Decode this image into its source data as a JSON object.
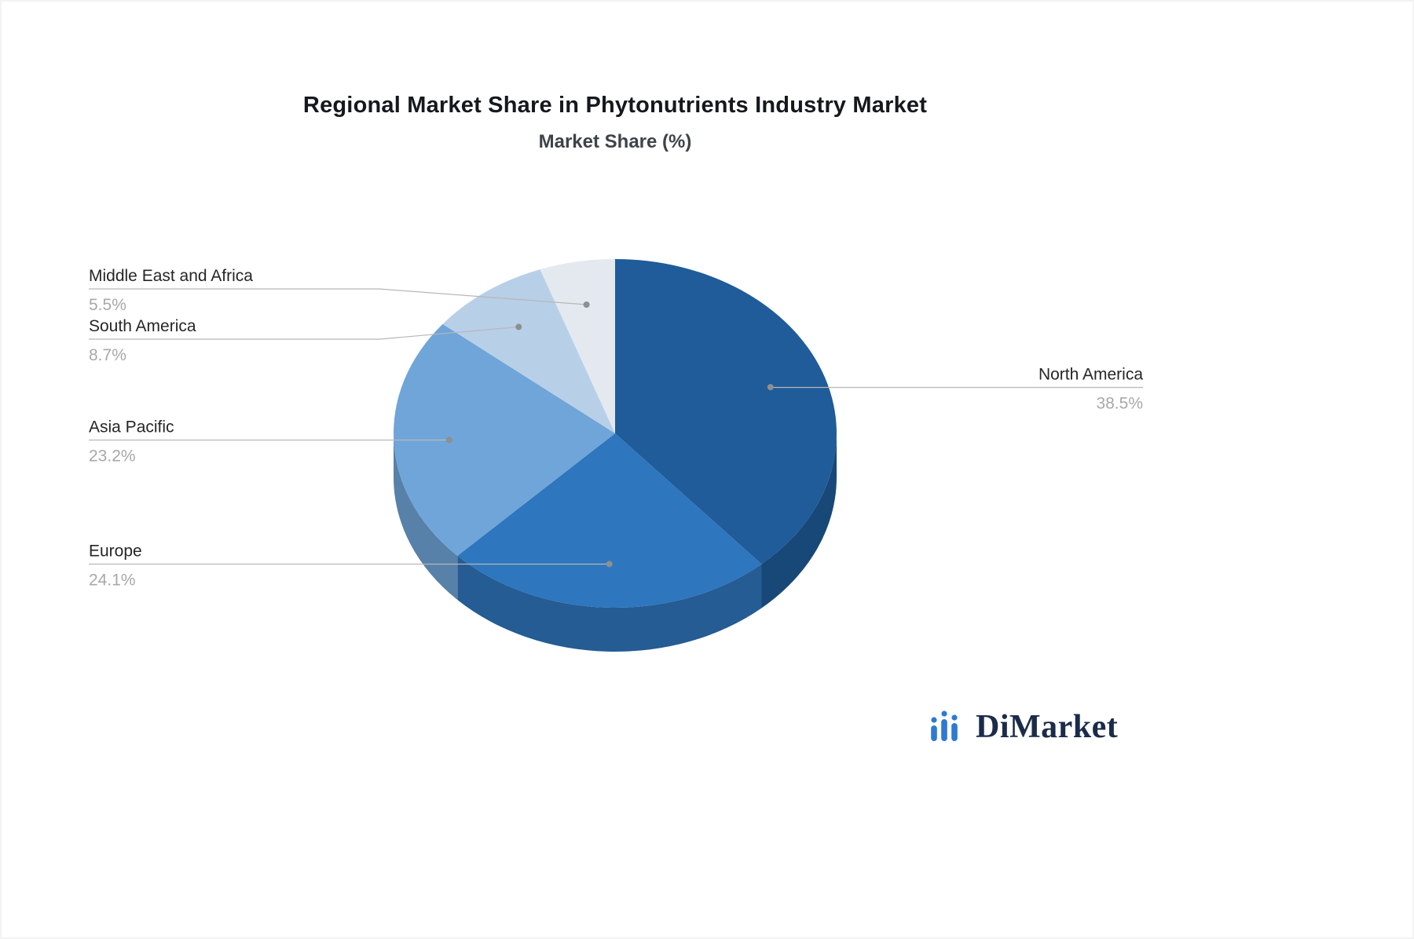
{
  "chart": {
    "title": "Regional Market Share in Phytonutrients Industry Market",
    "subtitle": "Market Share (%)"
  },
  "chart_data": {
    "type": "pie",
    "title": "Regional Market Share in Phytonutrients Industry Market",
    "subtitle": "Market Share (%)",
    "unit": "%",
    "effect": "3d",
    "start_angle_deg": 0,
    "direction": "clockwise",
    "legend_position": "none",
    "slices": [
      {
        "label": "North America",
        "value": 38.5,
        "color": "#1f5c99"
      },
      {
        "label": "Europe",
        "value": 24.1,
        "color": "#2e76bd"
      },
      {
        "label": "Asia Pacific",
        "value": 23.2,
        "color": "#6fa5d8"
      },
      {
        "label": "South America",
        "value": 8.7,
        "color": "#b8cfe8"
      },
      {
        "label": "Middle East and Africa",
        "value": 5.5,
        "color": "#e4e9f0"
      }
    ]
  },
  "branding": {
    "name": "DiMarket",
    "text_color": "#1b2b4a",
    "icon_color": "#2e7ad0",
    "icon": "bar-chart-icon"
  }
}
